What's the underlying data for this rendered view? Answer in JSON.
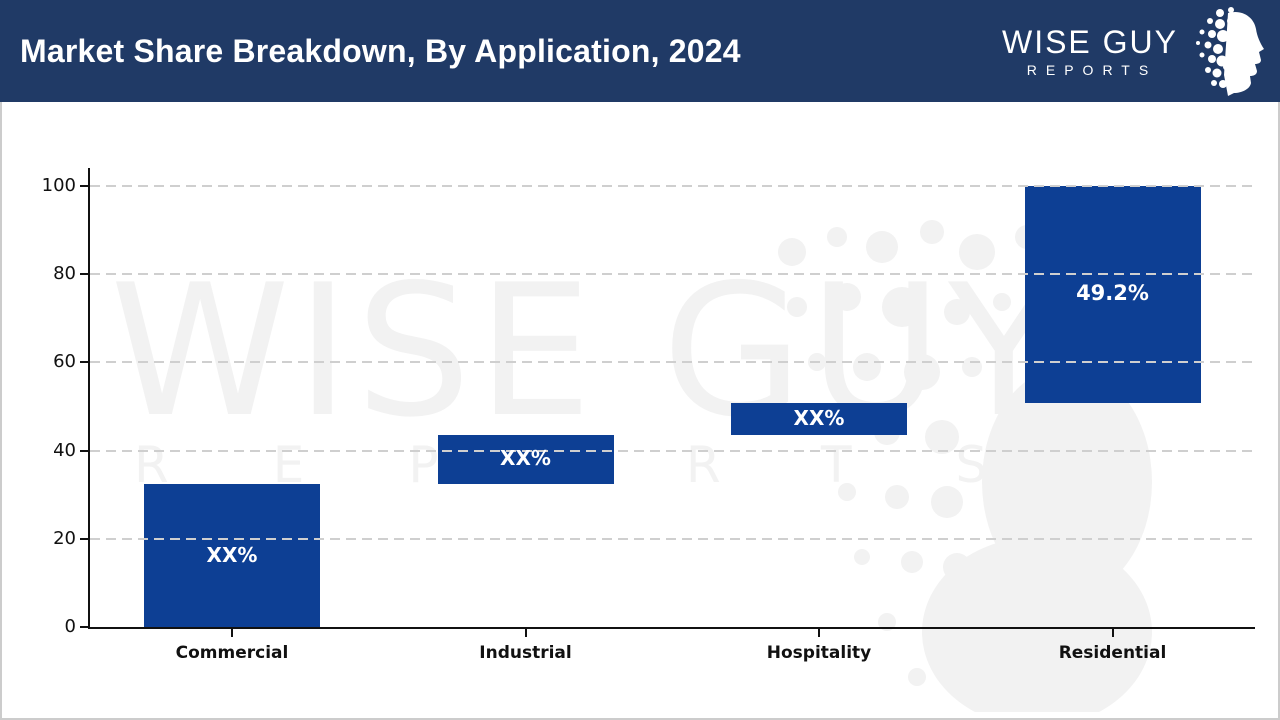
{
  "header": {
    "title": "Market Share Breakdown, By Application, 2024",
    "logo": {
      "name": "WISE GUY",
      "subtitle": "REPORTS",
      "icon": "dot-face-profile-icon"
    }
  },
  "watermark": {
    "line1": "WISE GUY",
    "line2": "REPORTS"
  },
  "colors": {
    "header_bg": "#203A66",
    "bar": "#0D3F94",
    "grid": "#CFCFCF",
    "axis": "#111111",
    "bar_label_text": "#FFFFFF",
    "frame_border": "#CCCCCC",
    "watermark": "#F2F2F2"
  },
  "chart_data": {
    "type": "bar",
    "subtype": "waterfall-floating-bars",
    "title": "Market Share Breakdown, By Application, 2024",
    "categories": [
      "Commercial",
      "Industrial",
      "Hospitality",
      "Residential"
    ],
    "segments": [
      {
        "category": "Commercial",
        "start": 0,
        "end": 32.4,
        "label": "XX%"
      },
      {
        "category": "Industrial",
        "start": 32.4,
        "end": 43.6,
        "label": "XX%"
      },
      {
        "category": "Hospitality",
        "start": 43.6,
        "end": 50.8,
        "label": "XX%"
      },
      {
        "category": "Residential",
        "start": 50.8,
        "end": 100,
        "label": "49.2%"
      }
    ],
    "xlabel": "",
    "ylabel": "",
    "ylim": [
      0,
      100
    ],
    "yticks": [
      0,
      20,
      40,
      60,
      80,
      100
    ],
    "grid": "horizontal-dashed-over-bars",
    "legend": "none"
  }
}
